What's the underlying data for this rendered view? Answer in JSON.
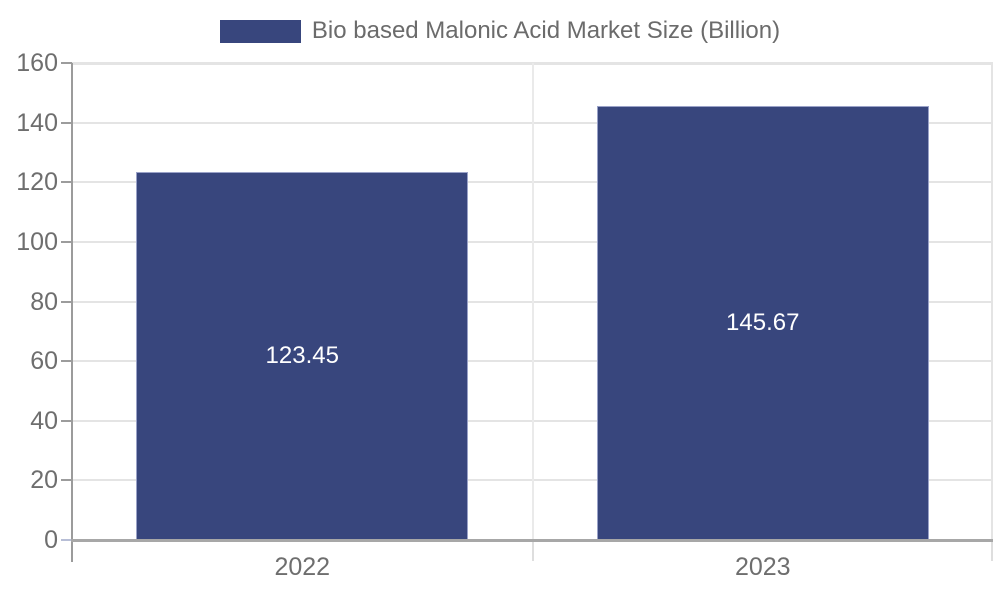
{
  "chart_data": {
    "type": "bar",
    "title": "",
    "legend": "Bio based Malonic Acid Market Size (Billion)",
    "legend_position": "top-center",
    "categories": [
      "2022",
      "2023"
    ],
    "values": [
      123.45,
      145.67
    ],
    "value_labels": [
      "123.45",
      "145.67"
    ],
    "xlabel": "",
    "ylabel": "",
    "ylim": [
      0,
      160
    ],
    "yticks": [
      0,
      20,
      40,
      60,
      80,
      100,
      120,
      140,
      160
    ],
    "grid": true,
    "bar_color": "#38467d",
    "bar_border_color": "#9aa2c8",
    "value_label_color": "#ffffff",
    "axis_text_color": "#6e6e6e",
    "zero_tick_color": "#b7bed6",
    "tick_color": "#9c9c9c"
  }
}
